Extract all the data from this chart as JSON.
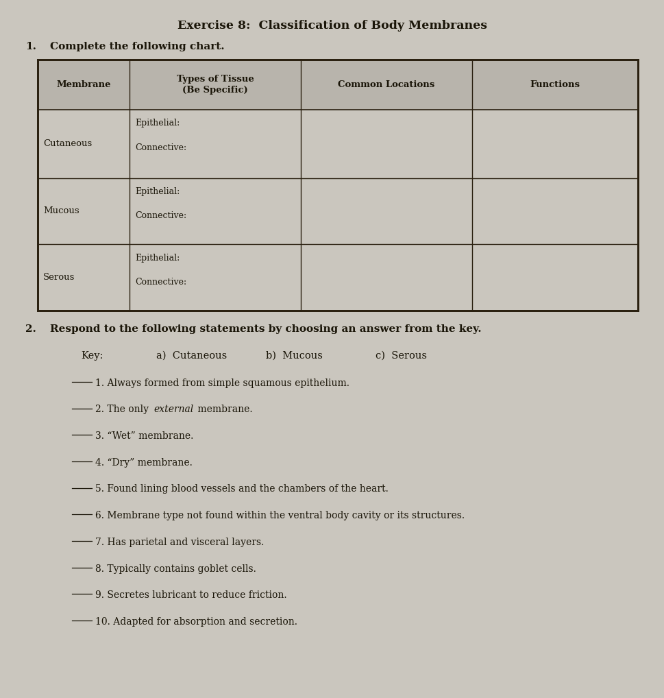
{
  "title": "Exercise 8:  Classification of Body Membranes",
  "section1_label": "1.",
  "section1_text": "Complete the following chart.",
  "section2_label": "2.",
  "section2_text": "Respond to the following statements by choosing an answer from the key.",
  "table_headers": [
    "Membrane",
    "Types of Tissue\n(Be Specific)",
    "Common Locations",
    "Functions"
  ],
  "membranes": [
    "Cutaneous",
    "Mucous",
    "Serous"
  ],
  "key_label": "Key:",
  "key_items": [
    "a)  Cutaneous",
    "b)  Mucous",
    "c)  Serous"
  ],
  "statements": [
    "1. Always formed from simple squamous epithelium.",
    "2. The only _external_ membrane.",
    "3. “Wet” membrane.",
    "4. “Dry” membrane.",
    "5. Found lining blood vessels and the chambers of the heart.",
    "6. Membrane type not found within the ventral body cavity or its structures.",
    "7. Has parietal and visceral layers.",
    "8. Typically contains goblet cells.",
    "9. Secretes lubricant to reduce friction.",
    "10. Adapted for absorption and secretion."
  ],
  "bg_color": "#cac6be",
  "text_color": "#1a1508",
  "table_border_color": "#2a2010",
  "header_fill_color": "#b8b4ac"
}
